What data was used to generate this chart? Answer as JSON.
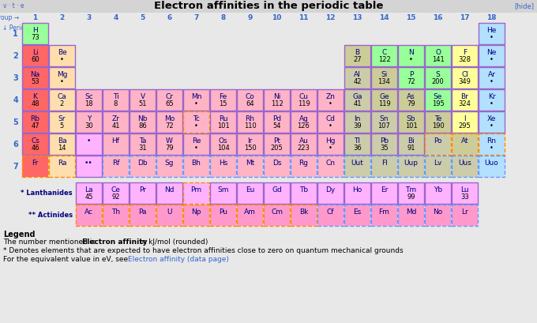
{
  "title": "Electron affinities in the periodic table",
  "elements": [
    {
      "sym": "H",
      "val": "73",
      "period": 1,
      "group": 1,
      "color": "#99ff99",
      "border": "#9966cc"
    },
    {
      "sym": "He",
      "val": "•",
      "period": 1,
      "group": 18,
      "color": "#b3e0ff",
      "border": "#9966cc"
    },
    {
      "sym": "Li",
      "val": "60",
      "period": 2,
      "group": 1,
      "color": "#ff6666",
      "border": "#9966cc"
    },
    {
      "sym": "Be",
      "val": "•",
      "period": 2,
      "group": 2,
      "color": "#ffdead",
      "border": "#9966cc"
    },
    {
      "sym": "B",
      "val": "27",
      "period": 2,
      "group": 13,
      "color": "#cccc99",
      "border": "#9966cc"
    },
    {
      "sym": "C",
      "val": "122",
      "period": 2,
      "group": 14,
      "color": "#99ff99",
      "border": "#9966cc"
    },
    {
      "sym": "N",
      "val": "•",
      "period": 2,
      "group": 15,
      "color": "#99ff99",
      "border": "#9966cc"
    },
    {
      "sym": "O",
      "val": "141",
      "period": 2,
      "group": 16,
      "color": "#99ff99",
      "border": "#9966cc"
    },
    {
      "sym": "F",
      "val": "328",
      "period": 2,
      "group": 17,
      "color": "#ffff99",
      "border": "#9966cc"
    },
    {
      "sym": "Ne",
      "val": "•",
      "period": 2,
      "group": 18,
      "color": "#b3e0ff",
      "border": "#9966cc"
    },
    {
      "sym": "Na",
      "val": "53",
      "period": 3,
      "group": 1,
      "color": "#ff6666",
      "border": "#9966cc"
    },
    {
      "sym": "Mg",
      "val": "•",
      "period": 3,
      "group": 2,
      "color": "#ffdead",
      "border": "#9966cc"
    },
    {
      "sym": "Al",
      "val": "42",
      "period": 3,
      "group": 13,
      "color": "#ccccaa",
      "border": "#9966cc"
    },
    {
      "sym": "Si",
      "val": "134",
      "period": 3,
      "group": 14,
      "color": "#cccc99",
      "border": "#9966cc"
    },
    {
      "sym": "P",
      "val": "72",
      "period": 3,
      "group": 15,
      "color": "#99ff99",
      "border": "#9966cc"
    },
    {
      "sym": "S",
      "val": "200",
      "period": 3,
      "group": 16,
      "color": "#99ff99",
      "border": "#9966cc"
    },
    {
      "sym": "Cl",
      "val": "349",
      "period": 3,
      "group": 17,
      "color": "#ffff99",
      "border": "#9966cc"
    },
    {
      "sym": "Ar",
      "val": "•",
      "period": 3,
      "group": 18,
      "color": "#b3e0ff",
      "border": "#9966cc"
    },
    {
      "sym": "K",
      "val": "48",
      "period": 4,
      "group": 1,
      "color": "#ff6666",
      "border": "#9966cc"
    },
    {
      "sym": "Ca",
      "val": "2",
      "period": 4,
      "group": 2,
      "color": "#ffdead",
      "border": "#9966cc"
    },
    {
      "sym": "Sc",
      "val": "18",
      "period": 4,
      "group": 3,
      "color": "#ffb3c6",
      "border": "#9966cc"
    },
    {
      "sym": "Ti",
      "val": "8",
      "period": 4,
      "group": 4,
      "color": "#ffb3c6",
      "border": "#9966cc"
    },
    {
      "sym": "V",
      "val": "51",
      "period": 4,
      "group": 5,
      "color": "#ffb3c6",
      "border": "#9966cc"
    },
    {
      "sym": "Cr",
      "val": "65",
      "period": 4,
      "group": 6,
      "color": "#ffb3c6",
      "border": "#9966cc"
    },
    {
      "sym": "Mn",
      "val": "•",
      "period": 4,
      "group": 7,
      "color": "#ffb3c6",
      "border": "#9966cc"
    },
    {
      "sym": "Fe",
      "val": "15",
      "period": 4,
      "group": 8,
      "color": "#ffb3c6",
      "border": "#9966cc"
    },
    {
      "sym": "Co",
      "val": "64",
      "period": 4,
      "group": 9,
      "color": "#ffb3c6",
      "border": "#9966cc"
    },
    {
      "sym": "Ni",
      "val": "112",
      "period": 4,
      "group": 10,
      "color": "#ffb3c6",
      "border": "#9966cc"
    },
    {
      "sym": "Cu",
      "val": "119",
      "period": 4,
      "group": 11,
      "color": "#ffb3c6",
      "border": "#9966cc"
    },
    {
      "sym": "Zn",
      "val": "•",
      "period": 4,
      "group": 12,
      "color": "#ffb3c6",
      "border": "#9966cc"
    },
    {
      "sym": "Ga",
      "val": "41",
      "period": 4,
      "group": 13,
      "color": "#ccccaa",
      "border": "#9966cc"
    },
    {
      "sym": "Ge",
      "val": "119",
      "period": 4,
      "group": 14,
      "color": "#cccc99",
      "border": "#9966cc"
    },
    {
      "sym": "As",
      "val": "79",
      "period": 4,
      "group": 15,
      "color": "#cccc99",
      "border": "#9966cc"
    },
    {
      "sym": "Se",
      "val": "195",
      "period": 4,
      "group": 16,
      "color": "#99ff99",
      "border": "#9966cc"
    },
    {
      "sym": "Br",
      "val": "324",
      "period": 4,
      "group": 17,
      "color": "#ffff99",
      "border": "#9966cc"
    },
    {
      "sym": "Kr",
      "val": "•",
      "period": 4,
      "group": 18,
      "color": "#b3e0ff",
      "border": "#9966cc"
    },
    {
      "sym": "Rb",
      "val": "47",
      "period": 5,
      "group": 1,
      "color": "#ff6666",
      "border": "#9966cc"
    },
    {
      "sym": "Sr",
      "val": "5",
      "period": 5,
      "group": 2,
      "color": "#ffdead",
      "border": "#9966cc"
    },
    {
      "sym": "Y",
      "val": "30",
      "period": 5,
      "group": 3,
      "color": "#ffb3c6",
      "border": "#9966cc"
    },
    {
      "sym": "Zr",
      "val": "41",
      "period": 5,
      "group": 4,
      "color": "#ffb3c6",
      "border": "#9966cc"
    },
    {
      "sym": "Nb",
      "val": "86",
      "period": 5,
      "group": 5,
      "color": "#ffb3c6",
      "border": "#9966cc"
    },
    {
      "sym": "Mo",
      "val": "72",
      "period": 5,
      "group": 6,
      "color": "#ffb3c6",
      "border": "#9966cc"
    },
    {
      "sym": "Tc",
      "val": "•",
      "period": 5,
      "group": 7,
      "color": "#ffb3c6",
      "border": "#ff8c00",
      "dashed": true
    },
    {
      "sym": "Ru",
      "val": "101",
      "period": 5,
      "group": 8,
      "color": "#ffb3c6",
      "border": "#9966cc"
    },
    {
      "sym": "Rh",
      "val": "110",
      "period": 5,
      "group": 9,
      "color": "#ffb3c6",
      "border": "#9966cc"
    },
    {
      "sym": "Pd",
      "val": "54",
      "period": 5,
      "group": 10,
      "color": "#ffb3c6",
      "border": "#9966cc"
    },
    {
      "sym": "Ag",
      "val": "126",
      "period": 5,
      "group": 11,
      "color": "#ffb3c6",
      "border": "#9966cc"
    },
    {
      "sym": "Cd",
      "val": "•",
      "period": 5,
      "group": 12,
      "color": "#ffb3c6",
      "border": "#9966cc"
    },
    {
      "sym": "In",
      "val": "39",
      "period": 5,
      "group": 13,
      "color": "#ccccaa",
      "border": "#9966cc"
    },
    {
      "sym": "Sn",
      "val": "107",
      "period": 5,
      "group": 14,
      "color": "#ccccaa",
      "border": "#9966cc"
    },
    {
      "sym": "Sb",
      "val": "101",
      "period": 5,
      "group": 15,
      "color": "#cccc99",
      "border": "#9966cc"
    },
    {
      "sym": "Te",
      "val": "190",
      "period": 5,
      "group": 16,
      "color": "#cccc99",
      "border": "#9966cc"
    },
    {
      "sym": "I",
      "val": "295",
      "period": 5,
      "group": 17,
      "color": "#ffff99",
      "border": "#9966cc"
    },
    {
      "sym": "Xe",
      "val": "•",
      "period": 5,
      "group": 18,
      "color": "#b3e0ff",
      "border": "#9966cc"
    },
    {
      "sym": "Cs",
      "val": "46",
      "period": 6,
      "group": 1,
      "color": "#ff6666",
      "border": "#9966cc"
    },
    {
      "sym": "Ba",
      "val": "14",
      "period": 6,
      "group": 2,
      "color": "#ffdead",
      "border": "#9966cc"
    },
    {
      "sym": "•",
      "val": "",
      "period": 6,
      "group": 3,
      "color": "#ffb3ff",
      "border": "#9966cc"
    },
    {
      "sym": "Hf",
      "val": "",
      "period": 6,
      "group": 4,
      "color": "#ffb3c6",
      "border": "#9966cc"
    },
    {
      "sym": "Ta",
      "val": "31",
      "period": 6,
      "group": 5,
      "color": "#ffb3c6",
      "border": "#9966cc"
    },
    {
      "sym": "W",
      "val": "79",
      "period": 6,
      "group": 6,
      "color": "#ffb3c6",
      "border": "#9966cc"
    },
    {
      "sym": "Re",
      "val": "•",
      "period": 6,
      "group": 7,
      "color": "#ffb3c6",
      "border": "#9966cc"
    },
    {
      "sym": "Os",
      "val": "104",
      "period": 6,
      "group": 8,
      "color": "#ffb3c6",
      "border": "#9966cc"
    },
    {
      "sym": "Ir",
      "val": "150",
      "period": 6,
      "group": 9,
      "color": "#ffb3c6",
      "border": "#9966cc"
    },
    {
      "sym": "Pt",
      "val": "205",
      "period": 6,
      "group": 10,
      "color": "#ffb3c6",
      "border": "#9966cc"
    },
    {
      "sym": "Au",
      "val": "223",
      "period": 6,
      "group": 11,
      "color": "#ffb3c6",
      "border": "#9966cc"
    },
    {
      "sym": "Hg",
      "val": "•",
      "period": 6,
      "group": 12,
      "color": "#ffb3c6",
      "border": "#9966cc"
    },
    {
      "sym": "Tl",
      "val": "36",
      "period": 6,
      "group": 13,
      "color": "#ccccaa",
      "border": "#9966cc"
    },
    {
      "sym": "Pb",
      "val": "35",
      "period": 6,
      "group": 14,
      "color": "#ccccaa",
      "border": "#9966cc"
    },
    {
      "sym": "Bi",
      "val": "91",
      "period": 6,
      "group": 15,
      "color": "#ccccaa",
      "border": "#9966cc"
    },
    {
      "sym": "Po",
      "val": "",
      "period": 6,
      "group": 16,
      "color": "#ccccaa",
      "border": "#ff8c00",
      "dashed": true
    },
    {
      "sym": "At",
      "val": "",
      "period": 6,
      "group": 17,
      "color": "#cccc99",
      "border": "#ff8c00",
      "dashed": true
    },
    {
      "sym": "Rn",
      "val": "•",
      "period": 6,
      "group": 18,
      "color": "#b3e0ff",
      "border": "#ff8c00",
      "dashed": true
    },
    {
      "sym": "Fr",
      "val": "",
      "period": 7,
      "group": 1,
      "color": "#ff6666",
      "border": "#ff8c00",
      "dashed": true
    },
    {
      "sym": "Ra",
      "val": "",
      "period": 7,
      "group": 2,
      "color": "#ffdead",
      "border": "#ff8c00",
      "dashed": true
    },
    {
      "sym": "••",
      "val": "",
      "period": 7,
      "group": 3,
      "color": "#ffb3ff",
      "border": "#9966cc"
    },
    {
      "sym": "Rf",
      "val": "",
      "period": 7,
      "group": 4,
      "color": "#ffb3c6",
      "border": "#6699ff",
      "dashed_blue": true
    },
    {
      "sym": "Db",
      "val": "",
      "period": 7,
      "group": 5,
      "color": "#ffb3c6",
      "border": "#6699ff",
      "dashed_blue": true
    },
    {
      "sym": "Sg",
      "val": "",
      "period": 7,
      "group": 6,
      "color": "#ffb3c6",
      "border": "#6699ff",
      "dashed_blue": true
    },
    {
      "sym": "Bh",
      "val": "",
      "period": 7,
      "group": 7,
      "color": "#ffb3c6",
      "border": "#6699ff",
      "dashed_blue": true
    },
    {
      "sym": "Hs",
      "val": "",
      "period": 7,
      "group": 8,
      "color": "#ffb3c6",
      "border": "#6699ff",
      "dashed_blue": true
    },
    {
      "sym": "Mt",
      "val": "",
      "period": 7,
      "group": 9,
      "color": "#ffb3c6",
      "border": "#6699ff",
      "dashed_blue": true
    },
    {
      "sym": "Ds",
      "val": "",
      "period": 7,
      "group": 10,
      "color": "#ffb3c6",
      "border": "#6699ff",
      "dashed_blue": true
    },
    {
      "sym": "Rg",
      "val": "",
      "period": 7,
      "group": 11,
      "color": "#ffb3c6",
      "border": "#6699ff",
      "dashed_blue": true
    },
    {
      "sym": "Cn",
      "val": "",
      "period": 7,
      "group": 12,
      "color": "#ffb3c6",
      "border": "#6699ff",
      "dashed_blue": true
    },
    {
      "sym": "Uut",
      "val": "",
      "period": 7,
      "group": 13,
      "color": "#ccccaa",
      "border": "#6699ff",
      "dashed_blue": true
    },
    {
      "sym": "Fl",
      "val": "",
      "period": 7,
      "group": 14,
      "color": "#ccccaa",
      "border": "#6699ff",
      "dashed_blue": true
    },
    {
      "sym": "Uup",
      "val": "",
      "period": 7,
      "group": 15,
      "color": "#ccccaa",
      "border": "#6699ff",
      "dashed_blue": true
    },
    {
      "sym": "Lv",
      "val": "",
      "period": 7,
      "group": 16,
      "color": "#ccccaa",
      "border": "#6699ff",
      "dashed_blue": true
    },
    {
      "sym": "Uus",
      "val": "",
      "period": 7,
      "group": 17,
      "color": "#ccccaa",
      "border": "#6699ff",
      "dashed_blue": true
    },
    {
      "sym": "Uuo",
      "val": "",
      "period": 7,
      "group": 18,
      "color": "#b3e0ff",
      "border": "#6699ff",
      "dashed_blue": true
    }
  ],
  "lanthanides": [
    {
      "sym": "La",
      "val": "45",
      "color": "#ffb3ff",
      "border": "#9966cc"
    },
    {
      "sym": "Ce",
      "val": "92",
      "color": "#ffb3ff",
      "border": "#9966cc"
    },
    {
      "sym": "Pr",
      "val": "",
      "color": "#ffb3ff",
      "border": "#9966cc"
    },
    {
      "sym": "Nd",
      "val": "",
      "color": "#ffb3ff",
      "border": "#9966cc"
    },
    {
      "sym": "Pm",
      "val": "",
      "color": "#ffb3ff",
      "border": "#ff8c00",
      "dashed": true
    },
    {
      "sym": "Sm",
      "val": "",
      "color": "#ffb3ff",
      "border": "#9966cc"
    },
    {
      "sym": "Eu",
      "val": "",
      "color": "#ffb3ff",
      "border": "#9966cc"
    },
    {
      "sym": "Gd",
      "val": "",
      "color": "#ffb3ff",
      "border": "#9966cc"
    },
    {
      "sym": "Tb",
      "val": "",
      "color": "#ffb3ff",
      "border": "#9966cc"
    },
    {
      "sym": "Dy",
      "val": "",
      "color": "#ffb3ff",
      "border": "#9966cc"
    },
    {
      "sym": "Ho",
      "val": "",
      "color": "#ffb3ff",
      "border": "#9966cc"
    },
    {
      "sym": "Er",
      "val": "",
      "color": "#ffb3ff",
      "border": "#9966cc"
    },
    {
      "sym": "Tm",
      "val": "99",
      "color": "#ffb3ff",
      "border": "#9966cc"
    },
    {
      "sym": "Yb",
      "val": "",
      "color": "#ffb3ff",
      "border": "#9966cc"
    },
    {
      "sym": "Lu",
      "val": "33",
      "color": "#ffb3ff",
      "border": "#9966cc"
    }
  ],
  "actinides": [
    {
      "sym": "Ac",
      "val": "",
      "color": "#ff99cc",
      "border": "#ff8c00",
      "dashed": true
    },
    {
      "sym": "Th",
      "val": "",
      "color": "#ff99cc",
      "border": "#ff8c00",
      "dashed": true
    },
    {
      "sym": "Pa",
      "val": "",
      "color": "#ff99cc",
      "border": "#ff8c00",
      "dashed": true
    },
    {
      "sym": "U",
      "val": "",
      "color": "#ff99cc",
      "border": "#ff8c00",
      "dashed": true
    },
    {
      "sym": "Np",
      "val": "",
      "color": "#ff99cc",
      "border": "#ff8c00",
      "dashed": true
    },
    {
      "sym": "Pu",
      "val": "",
      "color": "#ff99cc",
      "border": "#ff8c00",
      "dashed": true
    },
    {
      "sym": "Am",
      "val": "",
      "color": "#ff99cc",
      "border": "#ff8c00",
      "dashed": true
    },
    {
      "sym": "Cm",
      "val": "",
      "color": "#ff99cc",
      "border": "#ff8c00",
      "dashed": true
    },
    {
      "sym": "Bk",
      "val": "",
      "color": "#ff99cc",
      "border": "#ff8c00",
      "dashed": true
    },
    {
      "sym": "Cf",
      "val": "",
      "color": "#ff99cc",
      "border": "#6699ff",
      "dashed_blue": true
    },
    {
      "sym": "Es",
      "val": "",
      "color": "#ff99cc",
      "border": "#6699ff",
      "dashed_blue": true
    },
    {
      "sym": "Fm",
      "val": "",
      "color": "#ff99cc",
      "border": "#6699ff",
      "dashed_blue": true
    },
    {
      "sym": "Md",
      "val": "",
      "color": "#ff99cc",
      "border": "#6699ff",
      "dashed_blue": true
    },
    {
      "sym": "No",
      "val": "",
      "color": "#ff99cc",
      "border": "#6699ff",
      "dashed_blue": true
    },
    {
      "sym": "Lr",
      "val": "",
      "color": "#ff99cc",
      "border": "#6699ff",
      "dashed_blue": true
    }
  ]
}
